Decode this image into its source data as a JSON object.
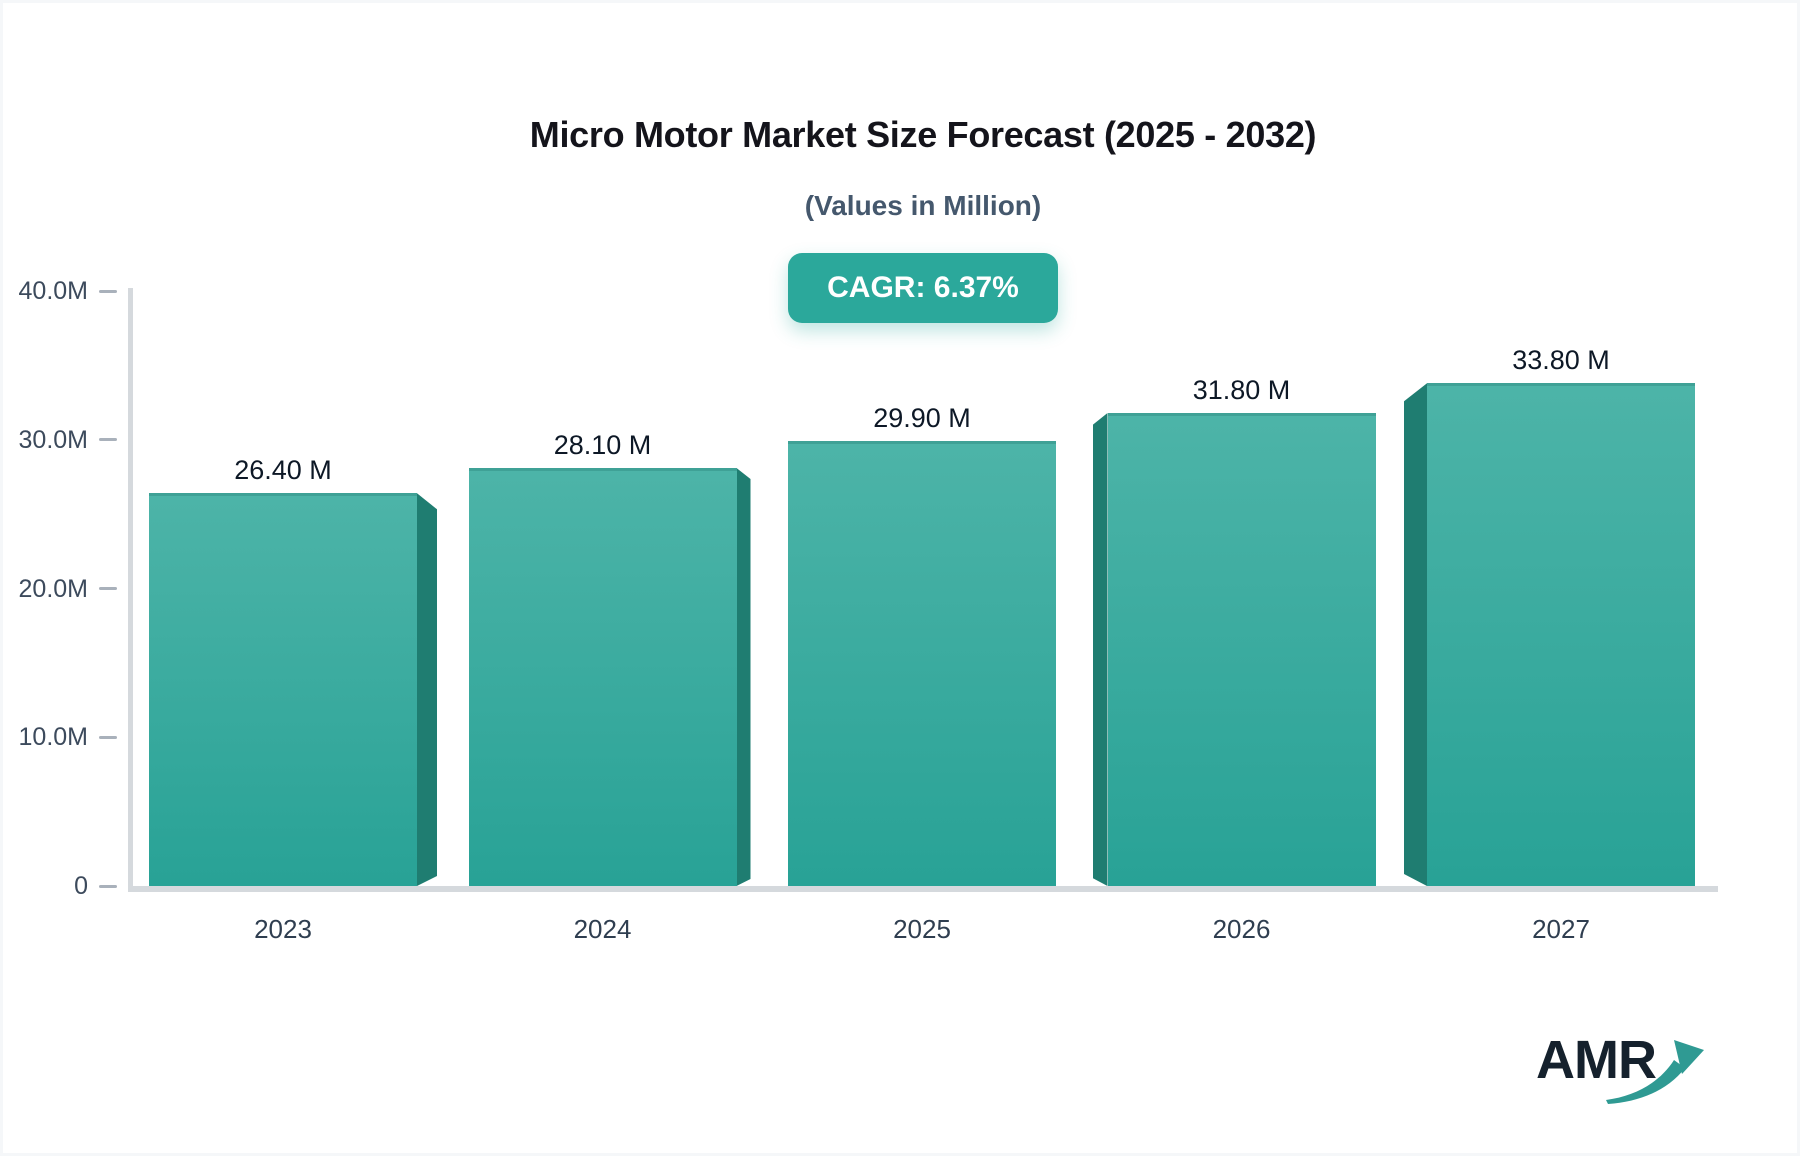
{
  "chart_data": {
    "type": "bar",
    "title": "Micro Motor Market Size Forecast (2025 - 2032)",
    "subtitle": "(Values in Million)",
    "badge_label": "CAGR: 6.37%",
    "categories": [
      "2023",
      "2024",
      "2025",
      "2026",
      "2027"
    ],
    "values": [
      26.4,
      28.1,
      29.9,
      31.8,
      33.8
    ],
    "bar_labels": [
      "26.40 M",
      "28.10 M",
      "29.90 M",
      "31.80 M",
      "33.80 M"
    ],
    "y_axis": {
      "ticks": [
        {
          "label": "40.0M",
          "value": 40
        },
        {
          "label": "30.0M",
          "value": 30
        },
        {
          "label": "20.0M",
          "value": 20
        },
        {
          "label": "10.0M",
          "value": 10
        },
        {
          "label": "0",
          "value": 0
        }
      ],
      "ylim": [
        0,
        40
      ]
    },
    "grid": "off",
    "legend": "none",
    "colors": {
      "bar_top": "#4db4a8",
      "bar_bottom": "#28a296",
      "bar_side": "#1f7d71",
      "badge_bg": "#2ba89b",
      "axis_line": "#d5d9dd"
    }
  },
  "logo": {
    "text": "AMR",
    "arrow_icon": "growth-arrow",
    "text_color": "#15212d",
    "arrow_color": "#2f9a93"
  }
}
